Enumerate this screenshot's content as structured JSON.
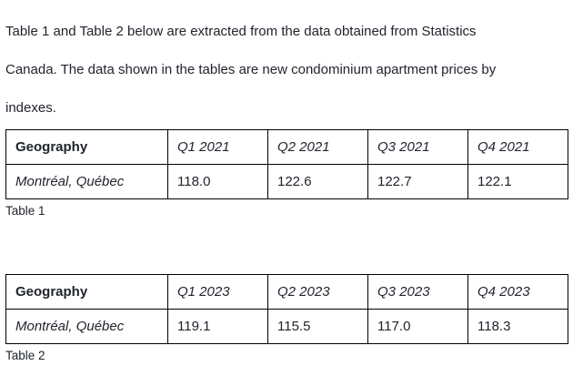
{
  "intro_lines": {
    "line1": "Table 1 and Table 2 below are extracted from the data obtained from Statistics",
    "line2": "Canada. The data shown in the tables are new condominium apartment prices by",
    "line3": "indexes."
  },
  "tables": [
    {
      "caption": "Table 1",
      "headers": [
        "Geography",
        "Q1 2021",
        "Q2 2021",
        "Q3 2021",
        "Q4 2021"
      ],
      "rows": [
        [
          "Montréal, Québec",
          "118.0",
          "122.6",
          "122.7",
          "122.1"
        ]
      ]
    },
    {
      "caption": "Table 2",
      "headers": [
        "Geography",
        "Q1 2023",
        "Q2 2023",
        "Q3 2023",
        "Q4 2023"
      ],
      "rows": [
        [
          "Montréal, Québec",
          "119.1",
          "115.5",
          "117.0",
          "118.3"
        ]
      ]
    }
  ],
  "chart_data": [
    {
      "type": "table",
      "title": "Table 1",
      "categories": [
        "Q1 2021",
        "Q2 2021",
        "Q3 2021",
        "Q4 2021"
      ],
      "series": [
        {
          "name": "Montréal, Québec",
          "values": [
            118.0,
            122.6,
            122.7,
            122.1
          ]
        }
      ]
    },
    {
      "type": "table",
      "title": "Table 2",
      "categories": [
        "Q1 2023",
        "Q2 2023",
        "Q3 2023",
        "Q4 2023"
      ],
      "series": [
        {
          "name": "Montréal, Québec",
          "values": [
            119.1,
            115.5,
            117.0,
            118.3
          ]
        }
      ]
    }
  ],
  "colors": {
    "background": "#ffffff",
    "text": "#21242e",
    "table_border": "#000000"
  }
}
